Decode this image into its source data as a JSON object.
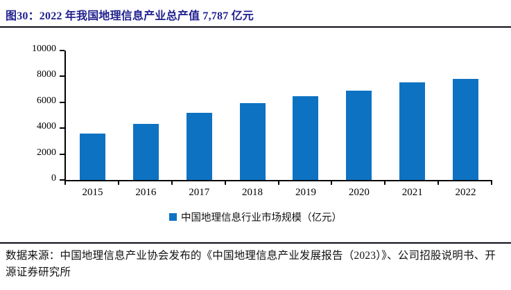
{
  "figure": {
    "title": "图30：2022 年我国地理信息产业总产值 7,787 亿元",
    "source_note": "数据来源：中国地理信息产业协会发布的《中国地理信息产业发展报告（2023）》、公司招股说明书、开源证券研究所"
  },
  "colors": {
    "bar": "#0d72c2",
    "title": "#21218f",
    "axis": "#000000",
    "rule": "#0a0a14"
  },
  "chart_data": {
    "type": "bar",
    "title": "图30：2022 年我国地理信息产业总产值 7,787 亿元",
    "categories": [
      "2015",
      "2016",
      "2017",
      "2018",
      "2019",
      "2020",
      "2021",
      "2022"
    ],
    "values": [
      3600,
      4360,
      5180,
      5957,
      6476,
      6890,
      7524,
      7787
    ],
    "series_name": "中国地理信息行业市场规模（亿元）",
    "xlabel": "",
    "ylabel": "",
    "ylim": [
      0,
      10000
    ],
    "yticks": [
      0,
      2000,
      4000,
      6000,
      8000,
      10000
    ],
    "grid": false,
    "legend_position": "bottom",
    "bar_color": "#0d72c2"
  }
}
